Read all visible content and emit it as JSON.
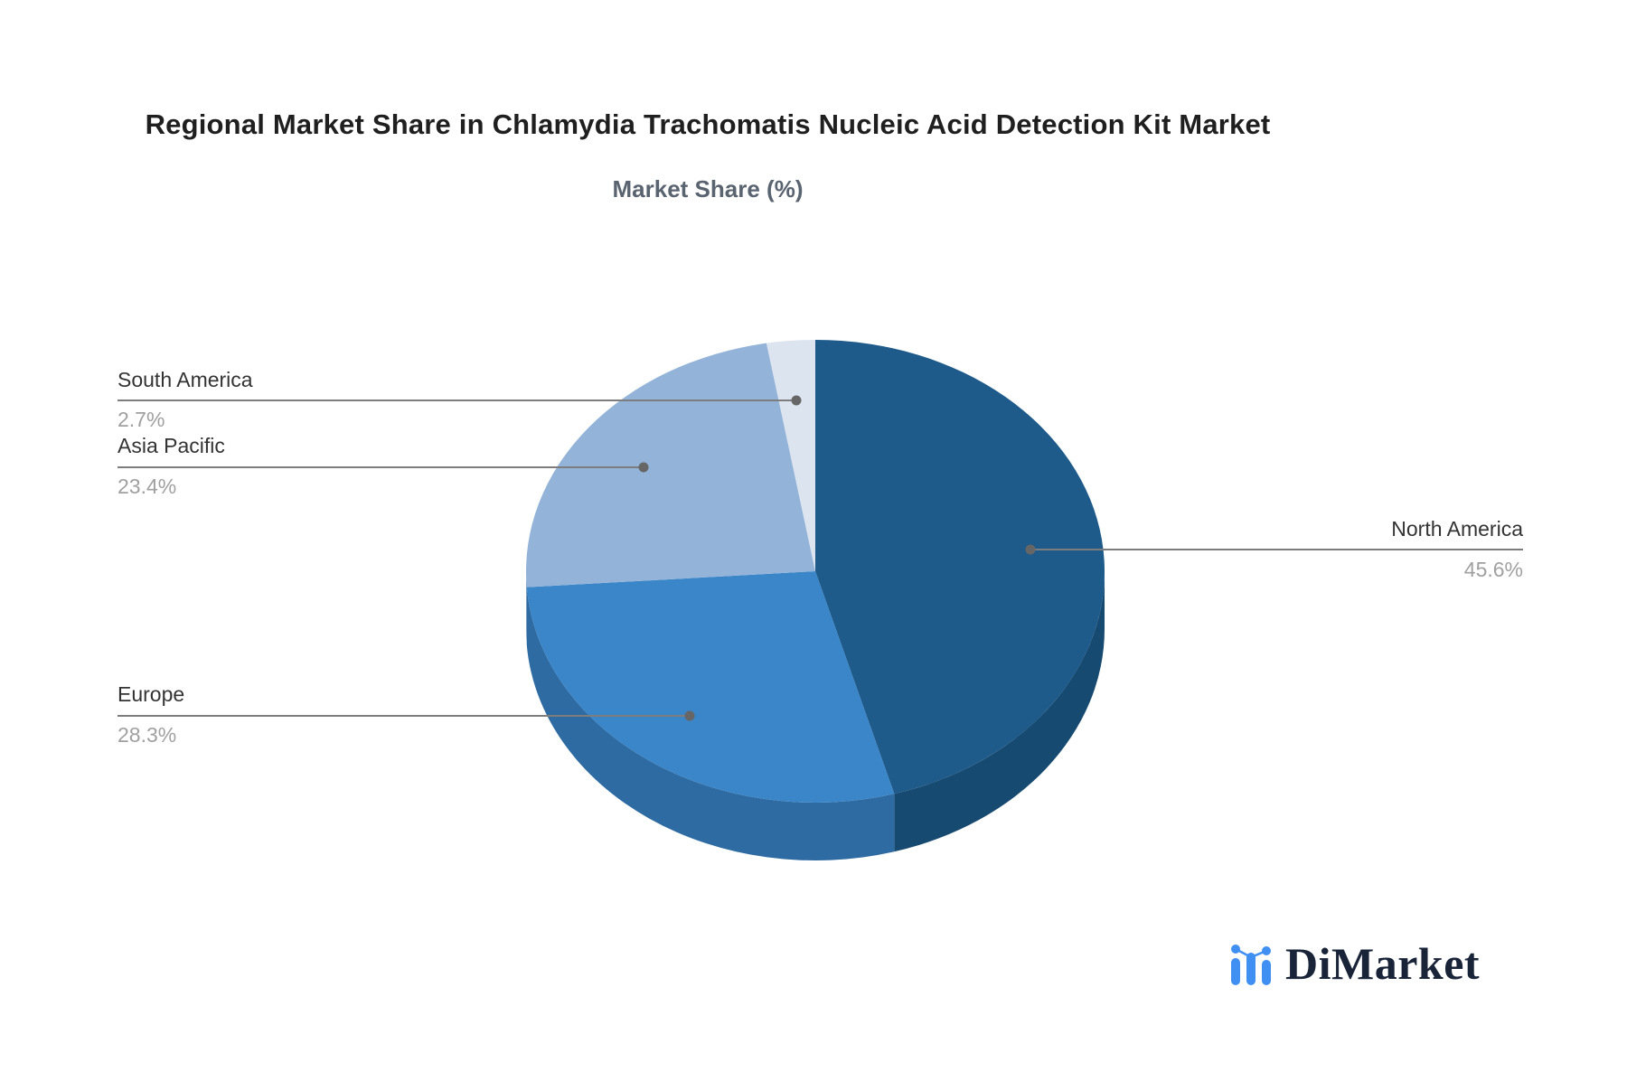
{
  "title": "Regional Market Share in Chlamydia Trachomatis Nucleic Acid Detection Kit Market",
  "subtitle": "Market Share (%)",
  "slices": [
    {
      "name": "North America",
      "value": 45.6,
      "pct_label": "45.6%"
    },
    {
      "name": "Europe",
      "value": 28.3,
      "pct_label": "28.3%"
    },
    {
      "name": "Asia Pacific",
      "value": 23.4,
      "pct_label": "23.4%"
    },
    {
      "name": "South America",
      "value": 2.7,
      "pct_label": "2.7%"
    }
  ],
  "chart_data": {
    "type": "pie",
    "title": "Regional Market Share in Chlamydia Trachomatis Nucleic Acid Detection Kit Market",
    "subtitle": "Market Share (%)",
    "unit": "%",
    "labels": [
      "North America",
      "Europe",
      "Asia Pacific",
      "South America"
    ],
    "values": [
      45.6,
      28.3,
      23.4,
      2.7
    ],
    "colors": [
      "#1e5a8a",
      "#3a86c8",
      "#93b4d8",
      "#dce4f0"
    ],
    "style": "3d",
    "start_angle_deg": 0,
    "direction": "clockwise",
    "legend": "none",
    "data_labels": "category name above leader line, percent value below"
  },
  "colors": {
    "background": "#ffffff",
    "slice_top": [
      "#1e5a8a",
      "#3a86c8",
      "#93b4d8",
      "#dce4f0"
    ],
    "slice_side": [
      "#174a70",
      "#2e6ba3",
      "#7095bf",
      "#b8c6dd"
    ],
    "leader_line": "#7d7d7d",
    "leader_dot": "#666666",
    "title_text": "#1f1f1f",
    "subtitle_text": "#5a6470",
    "label_text": "#333333",
    "percent_text": "#a0a0a0",
    "logo_blue": "#4090f4",
    "logo_navy": "#1a2439"
  },
  "watermark": {
    "brand": "DiMarket"
  }
}
